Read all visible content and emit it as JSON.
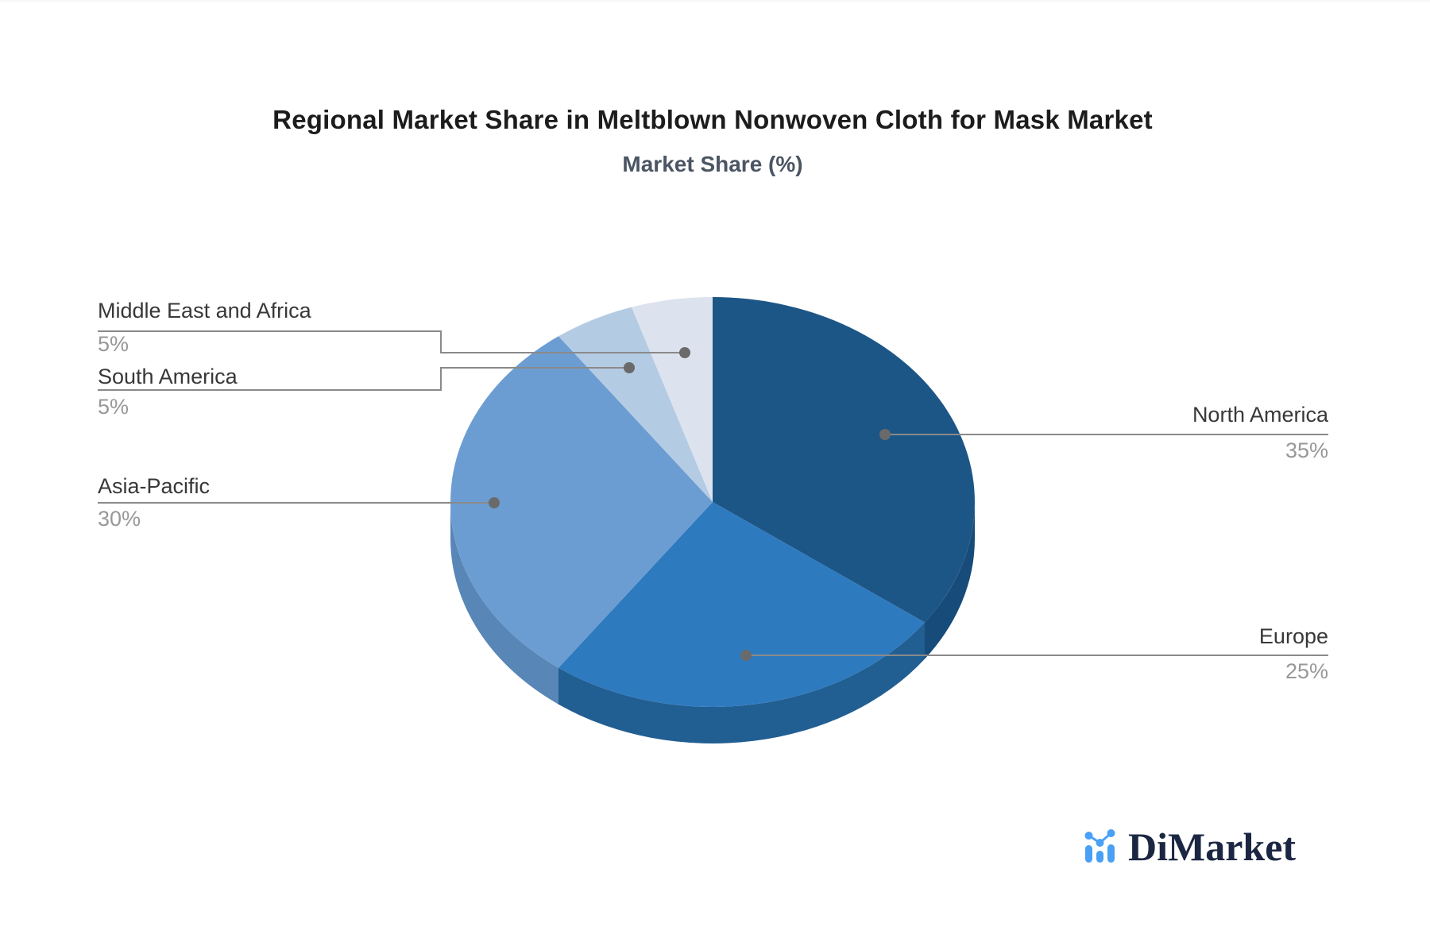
{
  "title": "Regional Market Share in Meltblown Nonwoven Cloth for Mask Market",
  "subtitle": "Market Share (%)",
  "brand": {
    "name": "DiMarket",
    "text_color": "#1b2742",
    "accent_color": "#4aa0f5"
  },
  "chart_data": {
    "type": "pie",
    "style": "3d",
    "title": "Regional Market Share in Meltblown Nonwoven Cloth for Mask Market",
    "subtitle": "Market Share (%)",
    "unit": "%",
    "start_angle_deg": 0,
    "direction": "clockwise",
    "legend": "none",
    "label_color": "#383838",
    "value_color": "#989898",
    "leader_line_color": "#8a8a8a",
    "leader_dot_color": "#6a6a6a",
    "slices": [
      {
        "label": "North America",
        "value": 35,
        "value_label": "35%",
        "color": "#1c5687",
        "side_color": "#174b79",
        "label_side": "right"
      },
      {
        "label": "Europe",
        "value": 25,
        "value_label": "25%",
        "color": "#2e7abf",
        "side_color": "#215e92",
        "label_side": "right"
      },
      {
        "label": "Asia-Pacific",
        "value": 30,
        "value_label": "30%",
        "color": "#6c9dd2",
        "side_color": "#5886b6",
        "label_side": "left"
      },
      {
        "label": "South America",
        "value": 5,
        "value_label": "5%",
        "color": "#b4cbe4",
        "side_color": "#96aec9",
        "label_side": "left"
      },
      {
        "label": "Middle East and Africa",
        "value": 5,
        "value_label": "5%",
        "color": "#dde3ee",
        "side_color": "#b9c4d6",
        "label_side": "left"
      }
    ]
  }
}
